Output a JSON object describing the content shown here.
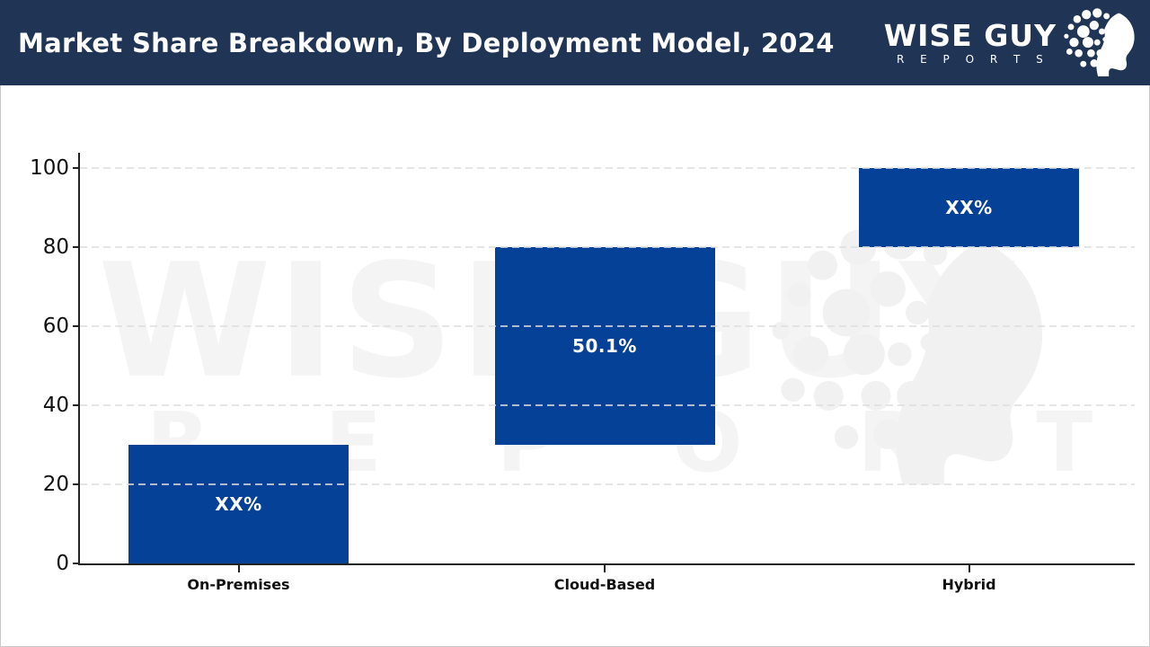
{
  "header": {
    "title": "Market Share Breakdown, By Deployment Model, 2024",
    "logo": {
      "name": "WISE GUY",
      "tagline": "R E P O R T S",
      "face_icon": "dotted-face-profile-icon"
    }
  },
  "watermark": {
    "big": "WISE GUY",
    "small": "R E P O R T S",
    "face_icon": "dotted-face-profile-watermark"
  },
  "colors": {
    "header_bg": "#203456",
    "bar": "#064198",
    "axis": "#222222",
    "gridline": "#dedee0",
    "watermark": "#f4f4f4",
    "border": "#c9c9c9",
    "bar_label": "#ffffff"
  },
  "chart_data": {
    "type": "bar",
    "variant": "floating-waterfall-segments",
    "title": "Market Share Breakdown, By Deployment Model, 2024",
    "categories": [
      "On-Premises",
      "Cloud-Based",
      "Hybrid"
    ],
    "segments": [
      {
        "category": "On-Premises",
        "from": 0,
        "to": 30,
        "label": "XX%"
      },
      {
        "category": "Cloud-Based",
        "from": 30,
        "to": 80,
        "label": "50.1%"
      },
      {
        "category": "Hybrid",
        "from": 80,
        "to": 100,
        "label": "XX%"
      }
    ],
    "yticks": [
      0,
      20,
      40,
      60,
      80,
      100
    ],
    "ylim": [
      0,
      100
    ],
    "xlabel": "",
    "ylabel": "",
    "grid": "dashed-horizontal-over-bars",
    "legend": "none",
    "bar_color": "#064198"
  }
}
